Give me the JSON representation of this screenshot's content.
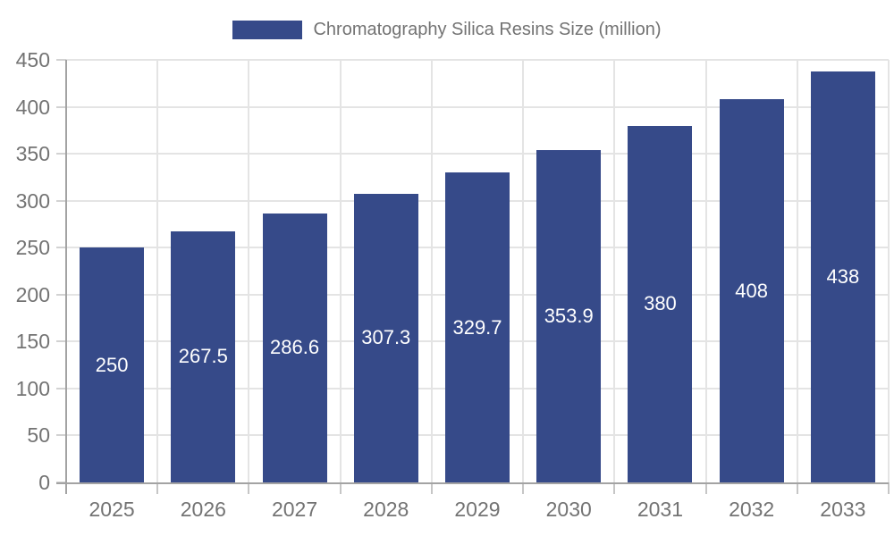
{
  "legend": {
    "position": "top",
    "items": [
      {
        "label": "Chromatography Silica Resins Size (million)",
        "color": "#364a89"
      }
    ]
  },
  "chart_data": {
    "type": "bar",
    "title": "Chromatography Silica Resins Size (million)",
    "categories": [
      "2025",
      "2026",
      "2027",
      "2028",
      "2029",
      "2030",
      "2031",
      "2032",
      "2033"
    ],
    "values": [
      250,
      267.5,
      286.6,
      307.3,
      329.7,
      353.9,
      380,
      408,
      438
    ],
    "value_labels": [
      "250",
      "267.5",
      "286.6",
      "307.3",
      "329.7",
      "353.9",
      "380",
      "408",
      "438"
    ],
    "xlabel": "",
    "ylabel": "",
    "ylim": [
      0,
      450
    ],
    "ytick_interval": 50,
    "ytick_labels": [
      "0",
      "50",
      "100",
      "150",
      "200",
      "250",
      "300",
      "350",
      "400",
      "450"
    ],
    "grid": true,
    "legend_position": "top",
    "colors": {
      "bar": "#364a89",
      "bar_label_text": "#ffffff",
      "axis_text": "#737373",
      "legend_text": "#737373",
      "axis_line": "#a3a3a3",
      "gridline": "#e4e4e4",
      "y_tick": "#d2d2d2",
      "x_tick": "#c6c6c6",
      "background": "#ffffff"
    }
  }
}
